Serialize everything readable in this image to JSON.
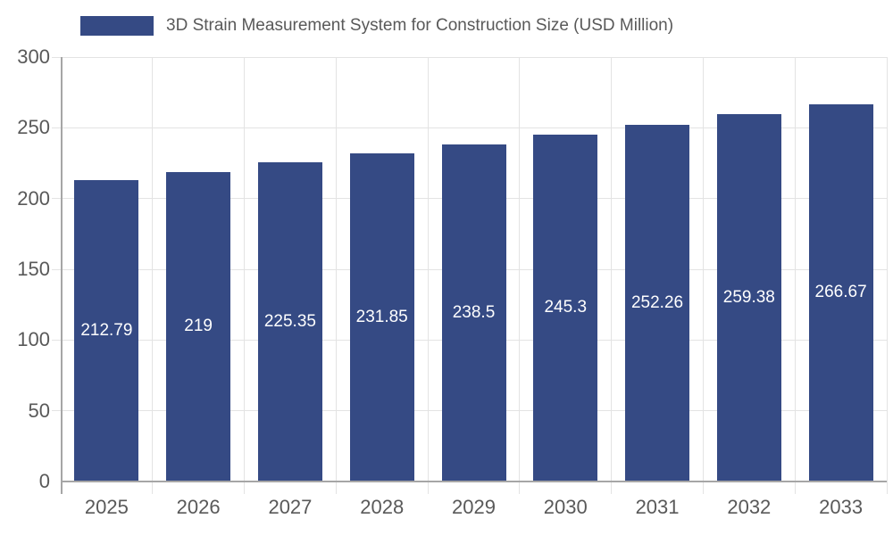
{
  "legend": {
    "label": "3D Strain Measurement System for Construction Size (USD Million)"
  },
  "chart_data": {
    "type": "bar",
    "title": "",
    "xlabel": "",
    "ylabel": "",
    "categories": [
      "2025",
      "2026",
      "2027",
      "2028",
      "2029",
      "2030",
      "2031",
      "2032",
      "2033"
    ],
    "series": [
      {
        "name": "3D Strain Measurement System for Construction Size (USD Million)",
        "values": [
          212.79,
          219,
          225.35,
          231.85,
          238.5,
          245.3,
          252.26,
          259.38,
          266.67
        ]
      }
    ],
    "value_labels": [
      "212.79",
      "219",
      "225.35",
      "231.85",
      "238.5",
      "245.3",
      "252.26",
      "259.38",
      "266.67"
    ],
    "ylim": [
      0,
      300
    ],
    "yticks": [
      0,
      50,
      100,
      150,
      200,
      250,
      300
    ],
    "grid": true,
    "legend_position": "top-left",
    "colors": {
      "bar": "#354a84",
      "bar_label": "#ffffff",
      "axis": "#a6a6a6",
      "grid": "#e3e3e3",
      "tick_label": "#595959"
    }
  }
}
